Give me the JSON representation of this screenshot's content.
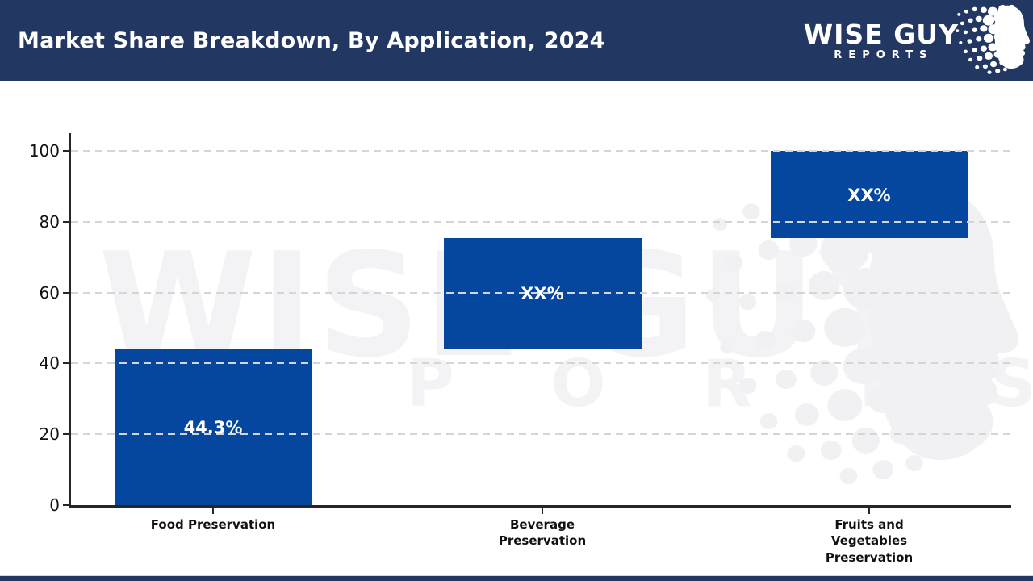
{
  "header": {
    "title": "Market Share Breakdown, By Application, 2024",
    "logo": {
      "line1": "WISE GUY",
      "line2": "REPORTS"
    }
  },
  "watermark": {
    "line1": "WISE GUY",
    "line2": "R E P O R T S"
  },
  "chart_data": {
    "type": "bar",
    "subtype": "floating-breakdown-waterfall",
    "title": "Market Share Breakdown, By Application, 2024",
    "xlabel": "",
    "ylabel": "",
    "categories": [
      "Food Preservation",
      "Beverage Preservation",
      "Fruits and Vegetables Preservation"
    ],
    "segments": [
      {
        "category": "Food Preservation",
        "start": 0,
        "end": 44.3,
        "label": "44.3%"
      },
      {
        "category": "Beverage Preservation",
        "start": 44.3,
        "end": 75.5,
        "label": "XX%"
      },
      {
        "category": "Fruits and Vegetables Preservation",
        "start": 75.5,
        "end": 100,
        "label": "XX%"
      }
    ],
    "values_visible": [
      44.3,
      null,
      null
    ],
    "yticks": [
      0,
      20,
      40,
      60,
      80,
      100
    ],
    "ylim": [
      0,
      103.5
    ],
    "grid": "dashed-horizontal-above-bars",
    "legend": "none",
    "bar_color": "#05479f",
    "bar_label_color": "#ffffff",
    "axis_color": "#262626",
    "gridline_color": "#d5d5d5",
    "header_color": "#223862",
    "watermark_color": "#f3f3f6"
  }
}
